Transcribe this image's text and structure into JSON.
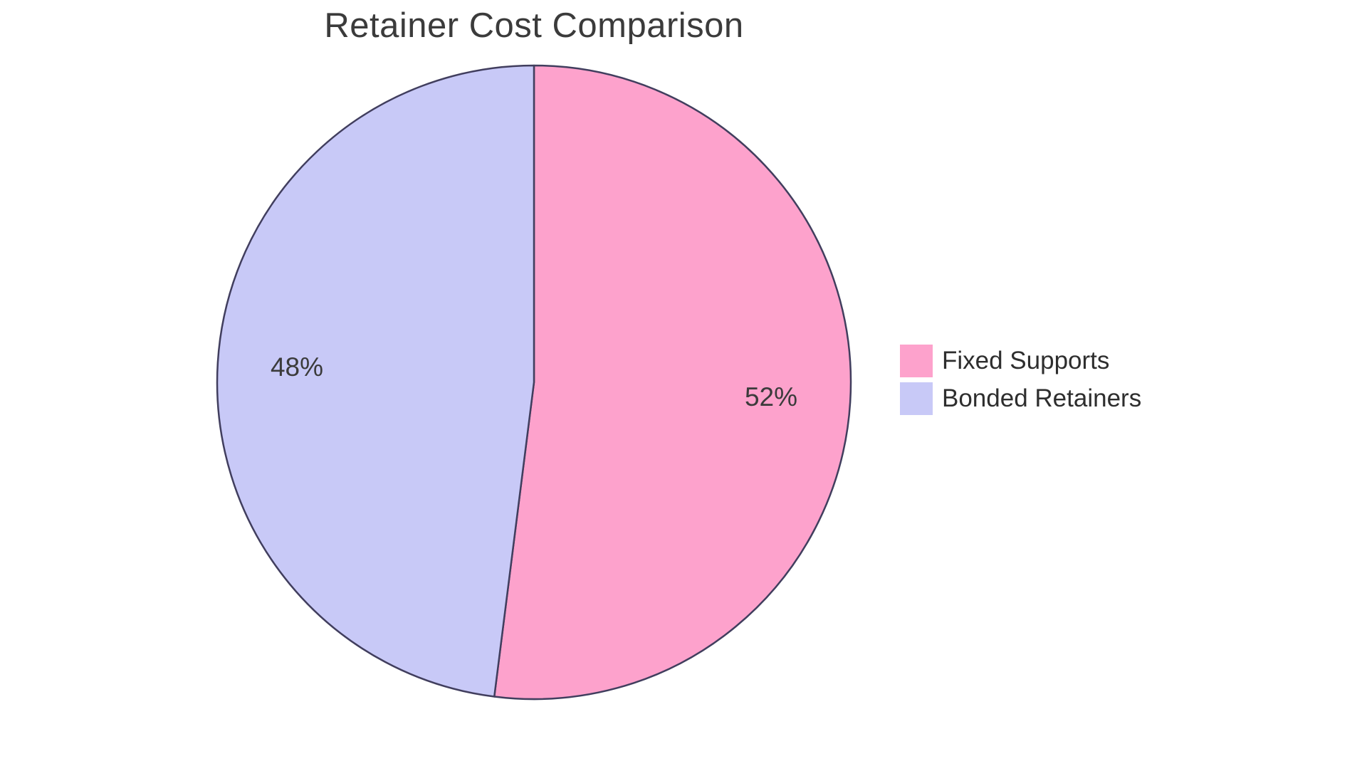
{
  "chart_data": {
    "type": "pie",
    "title": "Retainer Cost Comparison",
    "labels": [
      "Fixed Supports",
      "Bonded Retainers"
    ],
    "values": [
      52,
      48
    ],
    "slice_labels": [
      "52%",
      "48%"
    ],
    "colors": [
      "#FDA2CC",
      "#C8C9F7"
    ],
    "stroke_color": "#413E5E",
    "start_angle": 0,
    "direction": "clockwise",
    "legend_position": "right",
    "title_color": "#3B3B3B",
    "label_color": "#3B3B3B"
  },
  "legend": {
    "items": [
      {
        "label": "Fixed Supports",
        "color": "#FDA2CC"
      },
      {
        "label": "Bonded Retainers",
        "color": "#C8C9F7"
      }
    ]
  }
}
